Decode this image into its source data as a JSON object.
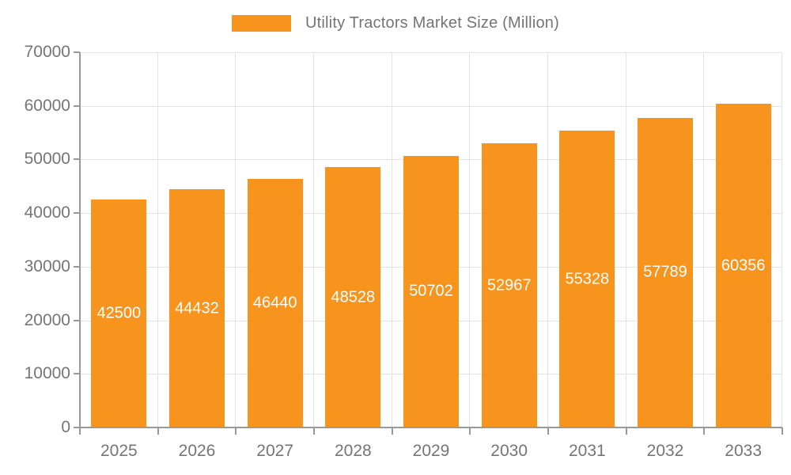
{
  "legend": {
    "label": "Utility Tractors Market Size (Million)"
  },
  "chart_data": {
    "type": "bar",
    "title": "Utility Tractors Market Size (Million)",
    "categories": [
      "2025",
      "2026",
      "2027",
      "2028",
      "2029",
      "2030",
      "2031",
      "2032",
      "2033"
    ],
    "values": [
      42500,
      44432,
      46440,
      48528,
      50702,
      52967,
      55328,
      57789,
      60356
    ],
    "xlabel": "",
    "ylabel": "",
    "ylim": [
      0,
      70000
    ],
    "yticks": [
      0,
      10000,
      20000,
      30000,
      40000,
      50000,
      60000,
      70000
    ],
    "grid": true,
    "legend_position": "top",
    "value_labels": "inside-center",
    "colors": {
      "bar": "#F7941E",
      "value_label": "#FFFFFF",
      "axis": "#999999",
      "grid": "#E3E3E3",
      "text": "#757575"
    }
  }
}
